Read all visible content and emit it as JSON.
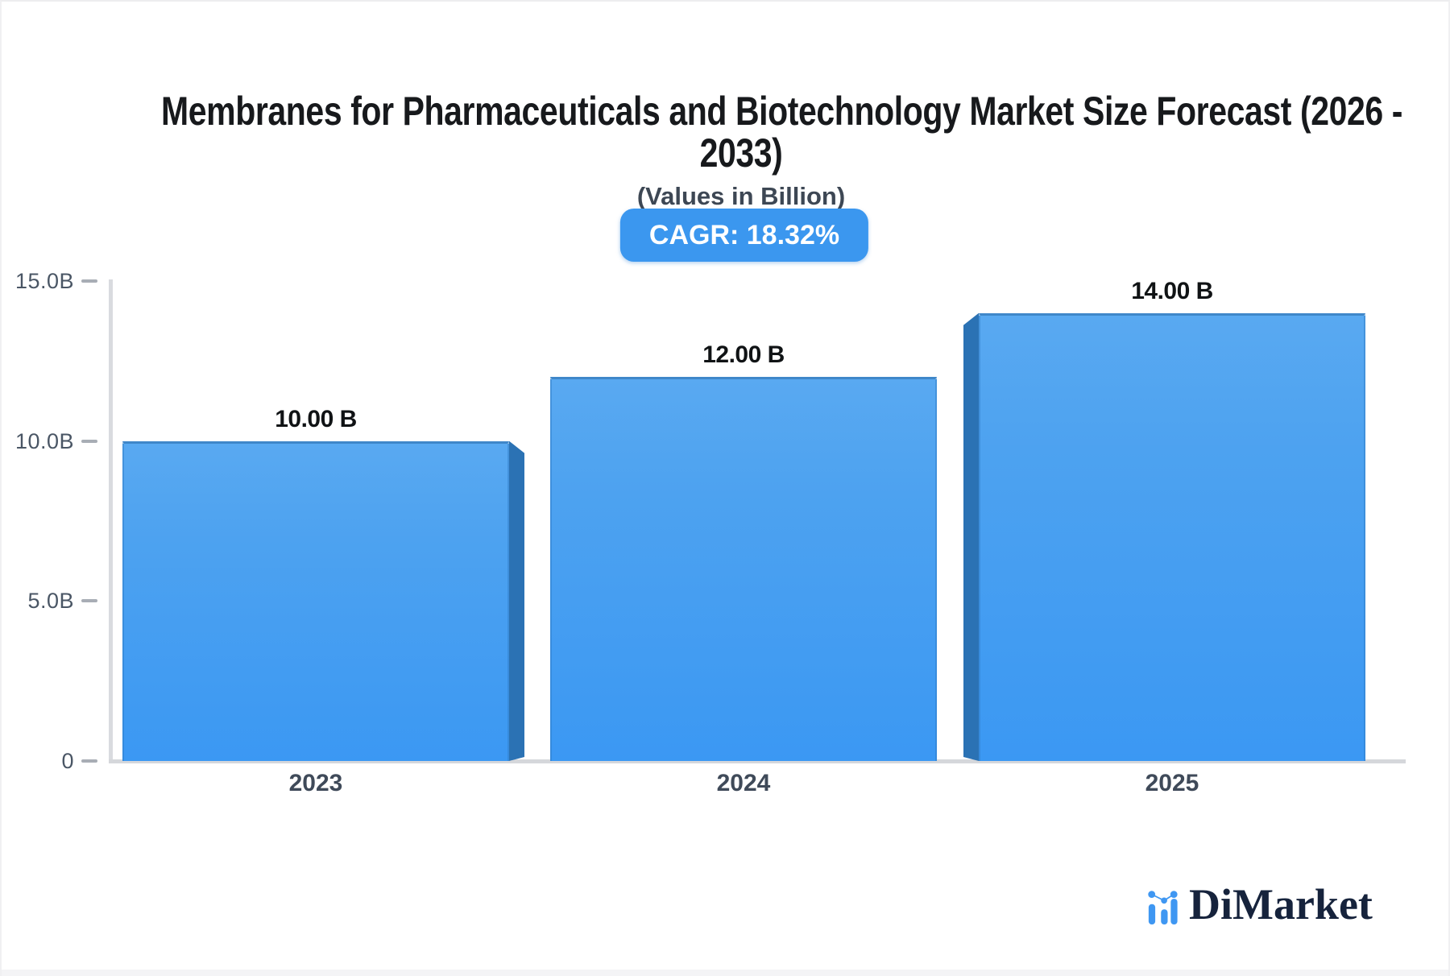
{
  "header": {
    "title_lines": [
      "Membranes for Pharmaceuticals and Biotechnology Market Size Forecast (2026 -",
      "2033)"
    ],
    "subtitle": "(Values in Billion)",
    "cagr_label": "CAGR: 18.32%"
  },
  "chart_data": {
    "type": "bar",
    "title": "Membranes for Pharmaceuticals and Biotechnology Market Size Forecast (2026 - 2033)",
    "subtitle": "(Values in Billion)",
    "cagr": "18.32%",
    "categories": [
      "2023",
      "2024",
      "2025"
    ],
    "values": [
      10.0,
      12.0,
      14.0
    ],
    "value_labels": [
      "10.00 B",
      "12.00 B",
      "14.00 B"
    ],
    "xlabel": "",
    "ylabel": "",
    "ylim": [
      0,
      15
    ],
    "yticks": [
      0,
      5,
      10,
      15
    ],
    "ytick_labels": [
      "0",
      "5.0B",
      "10.0B",
      "15.0B"
    ],
    "grid": false,
    "legend": false,
    "bar_colors": {
      "face_top": "#59a9f1",
      "face_bottom": "#3b98f3",
      "top_edge": "#3f87c9",
      "side_3d": "#2b72b4"
    }
  },
  "colors": {
    "badge_bg": "#3b97ef",
    "badge_text": "#ffffff",
    "axis_line": "#d7d9dd",
    "tick_label": "#4a5665",
    "title_text": "#17191c",
    "brand_blue": "#3f97f2",
    "brand_navy": "#16233c"
  },
  "branding": {
    "logo_text": "DiMarket",
    "logo_icon": "mini-bar-chart-icon"
  }
}
